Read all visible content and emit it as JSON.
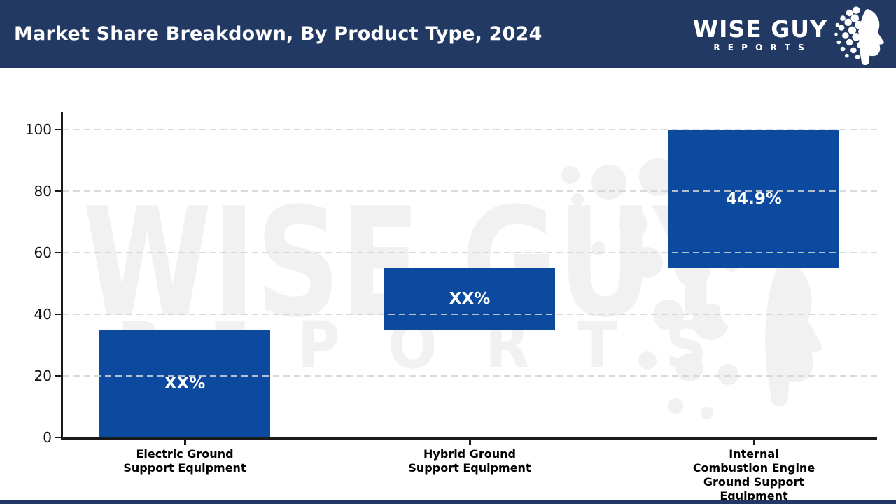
{
  "header": {
    "title": "Market Share Breakdown, By Product Type, 2024",
    "logo": {
      "wordmark": "WISE GUY",
      "subtext": "R E P O R T S"
    }
  },
  "watermark": {
    "line1": "WISE GUY",
    "line2": "R E P O R T S"
  },
  "chart_data": {
    "type": "bar",
    "subtype": "stepped-waterfall-segments",
    "title": "Market Share Breakdown, By Product Type, 2024",
    "categories": [
      "Electric Ground Support Equipment",
      "Hybrid Ground Support Equipment",
      "Internal Combustion Engine Ground Support Equipment"
    ],
    "category_label_lines": [
      [
        "Electric Ground",
        "Support Equipment"
      ],
      [
        "Hybrid Ground",
        "Support Equipment"
      ],
      [
        "Internal",
        "Combustion Engine",
        "Ground Support",
        "Equipment"
      ]
    ],
    "bars": [
      {
        "category": "Electric Ground Support Equipment",
        "start": 0,
        "end": 35.1,
        "value_label": "XX%"
      },
      {
        "category": "Hybrid Ground Support Equipment",
        "start": 35.1,
        "end": 55.1,
        "value_label": "XX%"
      },
      {
        "category": "Internal Combustion Engine Ground Support Equipment",
        "start": 55.1,
        "end": 100,
        "value_label": "44.9%"
      }
    ],
    "xlabel": "",
    "ylabel": "",
    "yticks": [
      0,
      20,
      40,
      60,
      80,
      100
    ],
    "ylim": [
      0,
      107
    ],
    "grid": {
      "axis": "y",
      "style": "dashed",
      "drawn_over_bars": true
    },
    "legend": null,
    "bar_color": "#0b4a9f",
    "value_label_color": "#ffffff"
  },
  "colors": {
    "header_bg": "#223963",
    "footer_bg": "#223963",
    "title_text": "#ffffff",
    "bar": "#0b4a9f",
    "axis": "#1a1a1a",
    "tick_label": "#111111",
    "category_label": "#000000",
    "gridline": "#dcdcdc",
    "watermark": "#f1f1f1",
    "background": "#ffffff"
  }
}
